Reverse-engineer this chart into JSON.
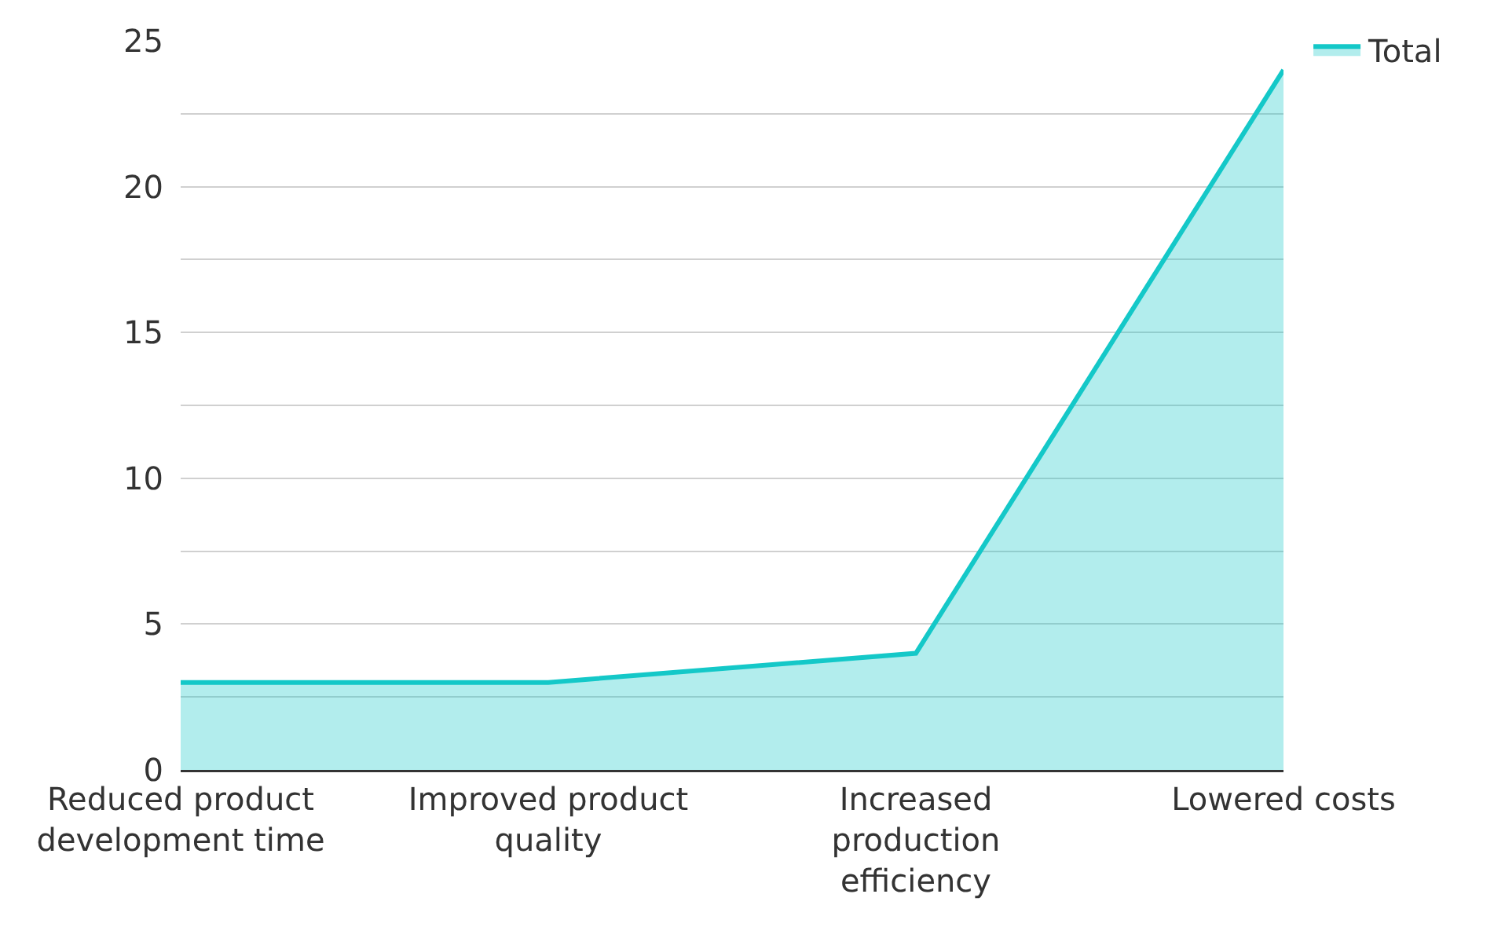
{
  "chart_data": {
    "type": "area",
    "categories": [
      "Reduced product development time",
      "Improved product quality",
      "Increased production efficiency",
      "Lowered costs"
    ],
    "series": [
      {
        "name": "Total",
        "color": "#14c8c8",
        "values": [
          3,
          3,
          4,
          24
        ]
      }
    ],
    "ylim": [
      0,
      25
    ],
    "yticks": [
      0,
      {
        "value": 2.5,
        "label": null
      },
      5,
      {
        "value": 7.5,
        "label": null
      },
      10,
      {
        "value": 12.5,
        "label": null
      },
      15,
      {
        "value": 17.5,
        "label": null
      },
      20,
      {
        "value": 22.5,
        "label": null
      },
      25
    ],
    "grid": "y",
    "legend": "top right",
    "marker": "none"
  }
}
